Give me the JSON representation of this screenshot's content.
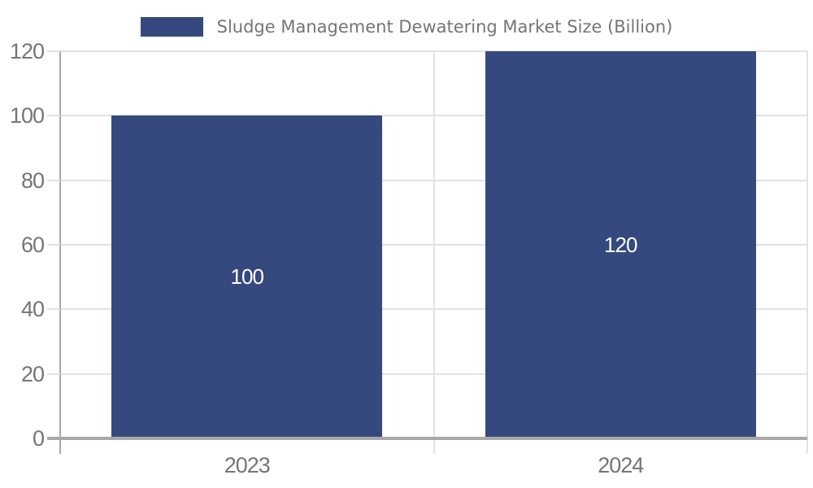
{
  "chart_data": {
    "type": "bar",
    "title": "Sludge Management Dewatering Market Size (Billion)",
    "categories": [
      "2023",
      "2024"
    ],
    "values": [
      100,
      120
    ],
    "data_labels": [
      "100",
      "120"
    ],
    "yticks": [
      0,
      20,
      40,
      60,
      80,
      100,
      120
    ],
    "ylim": [
      0,
      120
    ],
    "xlabel": "",
    "ylabel": "",
    "grid": true,
    "legend_position": "top-center",
    "colors": {
      "bar": "#36497E",
      "bar_label_text": "#ffffff",
      "grid": "#e2e2e2",
      "axis": "#a8a8a8",
      "tick_text": "#757575",
      "legend_text": "#757575",
      "background": "#ffffff"
    }
  }
}
